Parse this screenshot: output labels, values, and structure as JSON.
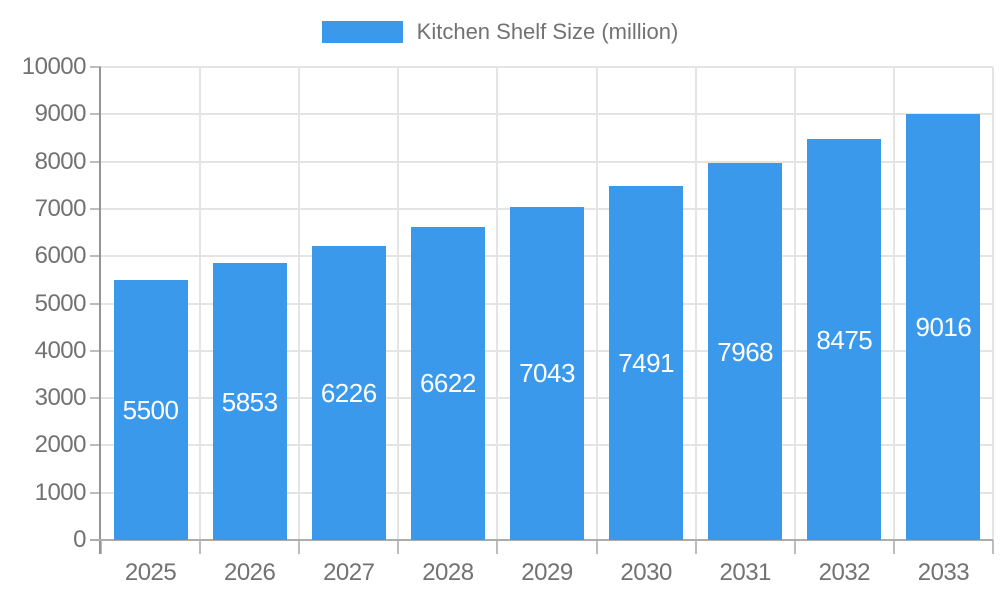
{
  "legend": {
    "label": "Kitchen Shelf Size (million)"
  },
  "chart_data": {
    "type": "bar",
    "title": "Kitchen Shelf Size (million)",
    "categories": [
      "2025",
      "2026",
      "2027",
      "2028",
      "2029",
      "2030",
      "2031",
      "2032",
      "2033"
    ],
    "values": [
      5500,
      5853,
      6226,
      6622,
      7043,
      7491,
      7968,
      8475,
      9016
    ],
    "xlabel": "",
    "ylabel": "",
    "ylim": [
      0,
      10000
    ],
    "y_ticks": [
      0,
      1000,
      2000,
      3000,
      4000,
      5000,
      6000,
      7000,
      8000,
      9000,
      10000
    ],
    "grid": true,
    "legend_position": "top-center",
    "colors": {
      "bar": "#3B99EC",
      "bar_label": "#FFFFFF",
      "grid": "#E4E4E4",
      "y_axis": "#949494",
      "x_axis": "#ADADAD",
      "tick": "#BDBDBD",
      "text": "#727272",
      "background": "#FFFFFF"
    }
  }
}
